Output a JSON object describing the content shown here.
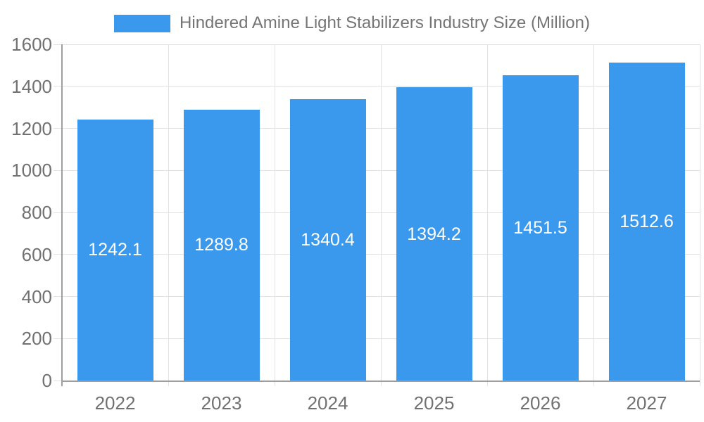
{
  "chart_data": {
    "type": "bar",
    "title": "Hindered Amine Light Stabilizers Industry Size (Million)",
    "categories": [
      "2022",
      "2023",
      "2024",
      "2025",
      "2026",
      "2027"
    ],
    "values": [
      1242.1,
      1289.8,
      1340.4,
      1394.2,
      1451.5,
      1512.6
    ],
    "xlabel": "",
    "ylabel": "",
    "ylim": [
      0,
      1600
    ],
    "yticks": [
      0,
      200,
      400,
      600,
      800,
      1000,
      1200,
      1400,
      1600
    ],
    "grid": true,
    "legend_position": "top",
    "bar_color": "#3A99EC",
    "bar_label_color": "#FFFFFF",
    "axis_label_color": "#717171",
    "legend_text_color": "#757575",
    "gridline_color": "#E2E2E2",
    "axis_line_color": "#9E9E9E",
    "background_color": "#FFFFFF"
  }
}
